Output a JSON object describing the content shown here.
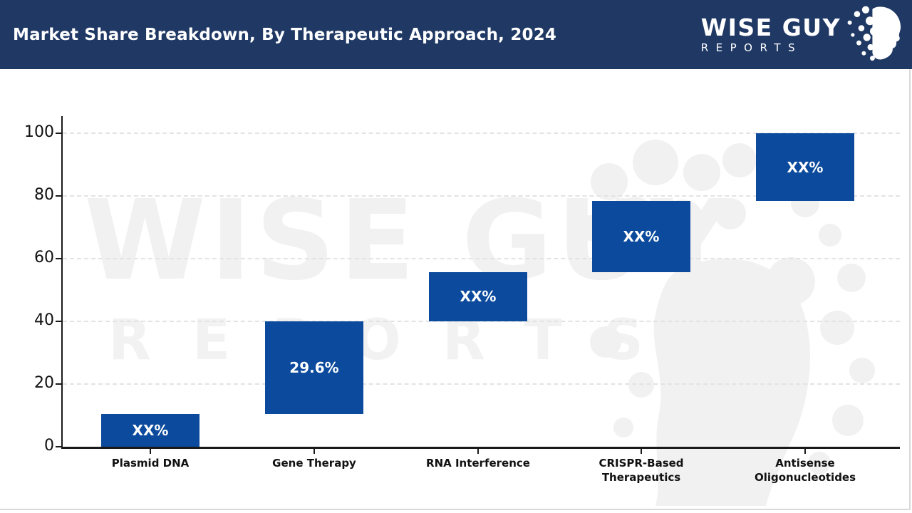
{
  "header": {
    "title": "Market Share Breakdown, By Therapeutic Approach, 2024",
    "logo": {
      "line1": "WISE GUY",
      "line2": "REPORTS"
    }
  },
  "watermark": {
    "line1": "WISE GUY",
    "line2": "REPORTS"
  },
  "colors": {
    "header_bg": "#1f3864",
    "bar": "#0b4a9c",
    "bar_label_text": "#ffffff",
    "gridline": "#e3e3e3",
    "axis": "#1a1a1a",
    "watermark": "#f1f1f1"
  },
  "chart_data": {
    "type": "bar",
    "subtype": "waterfall",
    "title": "Market Share Breakdown, By Therapeutic Approach, 2024",
    "categories": [
      "Plasmid DNA",
      "Gene Therapy",
      "RNA Interference",
      "CRISPR-Based Therapeutics",
      "Antisense Oligonucleotides"
    ],
    "segments": [
      {
        "category": "Plasmid DNA",
        "start": 0,
        "end": 10.4,
        "value": 10.4,
        "label": "XX%"
      },
      {
        "category": "Gene Therapy",
        "start": 10.4,
        "end": 40,
        "value": 29.6,
        "label": "29.6%"
      },
      {
        "category": "RNA Interference",
        "start": 40,
        "end": 55.7,
        "value": 15.7,
        "label": "XX%"
      },
      {
        "category": "CRISPR-Based Therapeutics",
        "start": 55.7,
        "end": 78.4,
        "value": 22.7,
        "label": "XX%"
      },
      {
        "category": "Antisense Oligonucleotides",
        "start": 78.4,
        "end": 100,
        "value": 21.6,
        "label": "XX%"
      }
    ],
    "ylim": [
      0,
      100
    ],
    "yticks": [
      0,
      20,
      40,
      60,
      80,
      100
    ],
    "xlabel": "",
    "ylabel": "",
    "grid": "dashed-horizontal",
    "legend": "none"
  }
}
